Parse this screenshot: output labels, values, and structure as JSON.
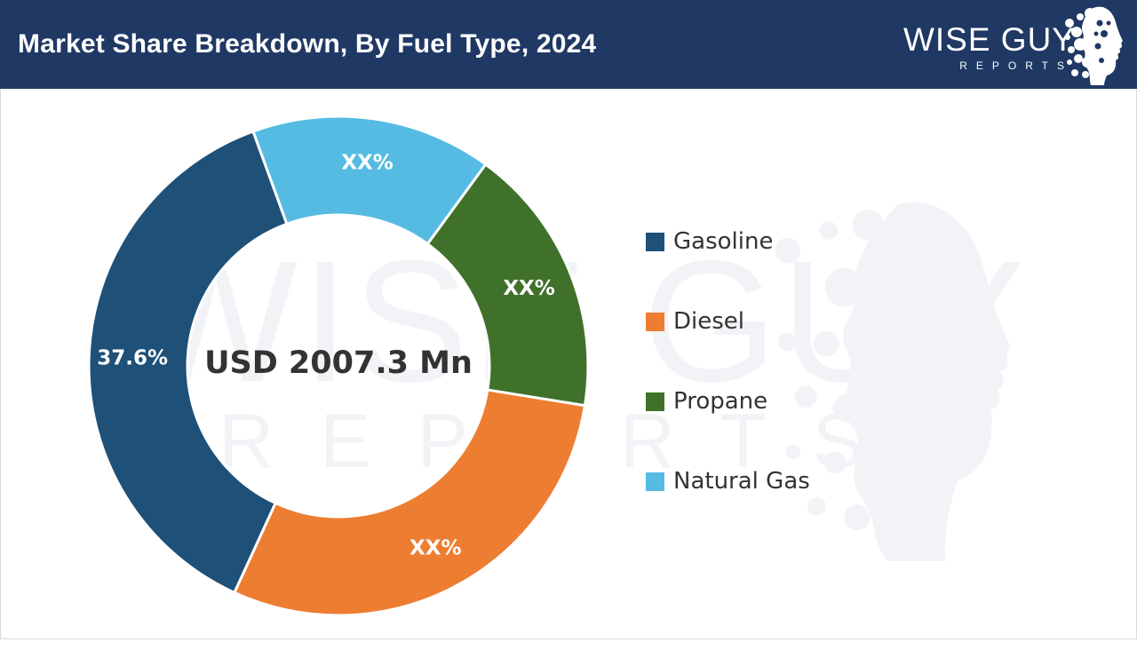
{
  "header": {
    "title": "Market Share Breakdown, By Fuel Type, 2024",
    "bg_color": "#203864",
    "logo": {
      "line1": "WISE GUY",
      "line2": "REPORTS"
    }
  },
  "watermark": {
    "line1": "WISE GUY",
    "line2": "REPORTS",
    "color": "#f2f3f6"
  },
  "chart_data": {
    "type": "pie",
    "subtype": "donut",
    "title": "Market Share Breakdown, By Fuel Type, 2024",
    "center_label": "USD 2007.3 Mn",
    "start_angle_deg": -20,
    "inner_radius_ratio": 0.605,
    "legend_position": "right",
    "slices": [
      {
        "label": "Natural Gas",
        "value": 15.6,
        "display_label": "XX%",
        "color": "#55BBE3"
      },
      {
        "label": "Propane",
        "value": 17.5,
        "display_label": "XX%",
        "color": "#40712A"
      },
      {
        "label": "Diesel",
        "value": 29.3,
        "display_label": "XX%",
        "color": "#ED7D31"
      },
      {
        "label": "Gasoline",
        "value": 37.6,
        "display_label": "37.6%",
        "color": "#1F5077"
      }
    ],
    "legend": [
      {
        "label": "Gasoline",
        "color": "#1F5077"
      },
      {
        "label": "Diesel",
        "color": "#ED7D31"
      },
      {
        "label": "Propane",
        "color": "#40712A"
      },
      {
        "label": "Natural Gas",
        "color": "#55BBE3"
      }
    ]
  }
}
